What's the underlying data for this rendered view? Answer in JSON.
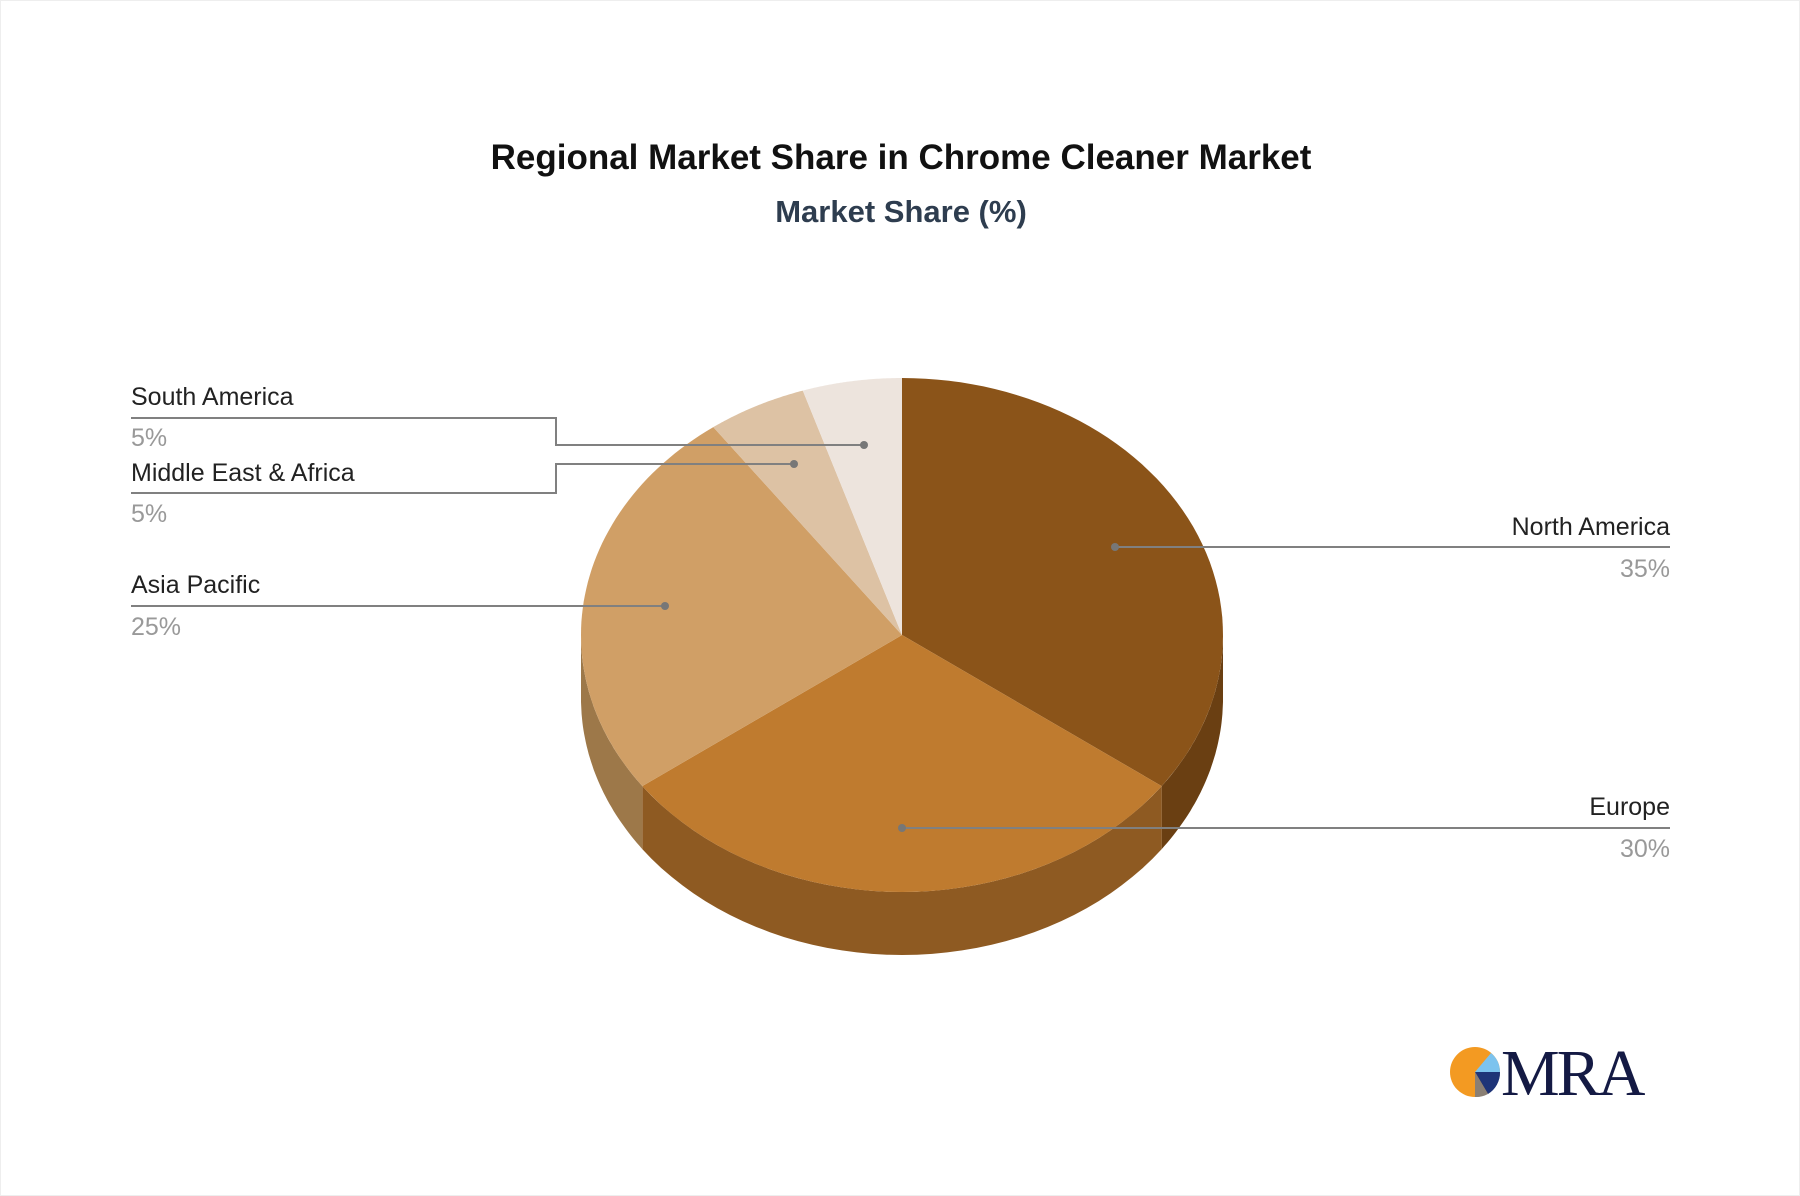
{
  "chart_data": {
    "type": "pie",
    "style": "3d",
    "title": "Regional Market Share in Chrome Cleaner Market",
    "subtitle": "Market Share (%)",
    "slices": [
      {
        "label": "North America",
        "value": 35,
        "display": "35%",
        "color": "#8B5419",
        "side_color": "#6A3F12"
      },
      {
        "label": "Europe",
        "value": 30,
        "display": "30%",
        "color": "#BF7B2F",
        "side_color": "#8E5A22"
      },
      {
        "label": "Asia Pacific",
        "value": 25,
        "display": "25%",
        "color": "#D09F66",
        "side_color": "#9D7849"
      },
      {
        "label": "Middle East & Africa",
        "value": 5,
        "display": "5%",
        "color": "#DDC2A4",
        "side_color": "#A99478"
      },
      {
        "label": "South America",
        "value": 5,
        "display": "5%",
        "color": "#EDE4DD",
        "side_color": "#B7AFA8"
      }
    ]
  },
  "logo": {
    "text": "MRA"
  }
}
